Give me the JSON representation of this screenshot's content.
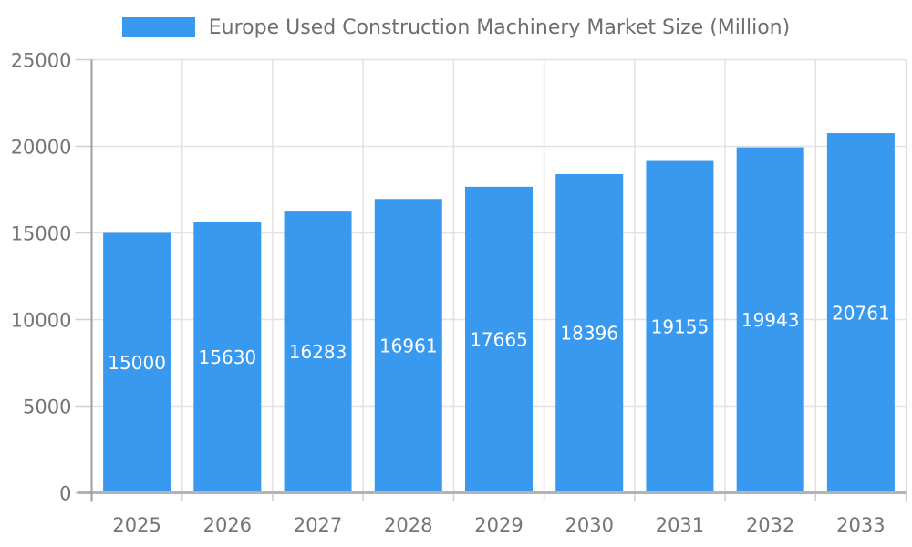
{
  "chart_data": {
    "type": "bar",
    "title": "Europe Used Construction Machinery Market Size (Million)",
    "legend_label": "Europe Used Construction Machinery Market Size (Million)",
    "legend_position": "top",
    "categories": [
      "2025",
      "2026",
      "2027",
      "2028",
      "2029",
      "2030",
      "2031",
      "2032",
      "2033"
    ],
    "values": [
      15000,
      15630,
      16283,
      16961,
      17665,
      18396,
      19155,
      19943,
      20761
    ],
    "xlabel": "",
    "ylabel": "",
    "ylim": [
      0,
      25000
    ],
    "yticks": [
      0,
      5000,
      10000,
      15000,
      20000,
      25000
    ],
    "grid": true,
    "bar_labels_visible": true,
    "colors": {
      "bar": "#3999EE",
      "bar_label": "#FFFFFF",
      "axis_text": "#757575",
      "legend_text": "#6E6E6E",
      "grid": "#E2E2E2",
      "tick": "#CFCFCF",
      "x_axis_line": "#B3B3B3",
      "y_axis_line": "#9E9E9E"
    }
  }
}
